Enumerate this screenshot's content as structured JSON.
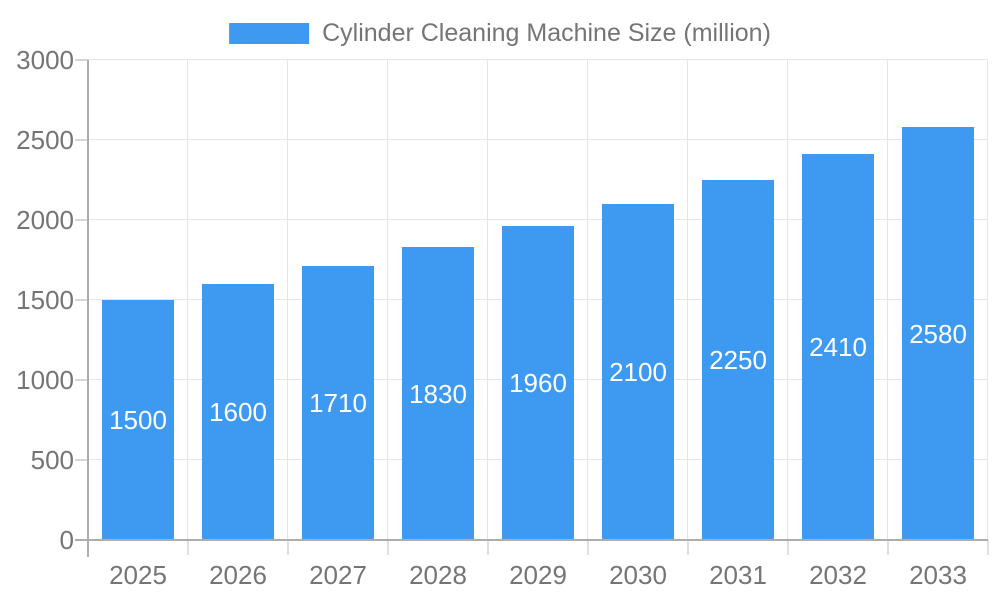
{
  "legend": {
    "series_label": "Cylinder Cleaning Machine Size (million)",
    "swatch_color": "#3d9af0"
  },
  "chart_data": {
    "type": "bar",
    "title": "",
    "xlabel": "",
    "ylabel": "",
    "categories": [
      "2025",
      "2026",
      "2027",
      "2028",
      "2029",
      "2030",
      "2031",
      "2032",
      "2033"
    ],
    "values": [
      1500,
      1600,
      1710,
      1830,
      1960,
      2100,
      2250,
      2410,
      2580
    ],
    "series_name": "Cylinder Cleaning Machine Size (million)",
    "ylim": [
      0,
      3000
    ],
    "yticks": [
      0,
      500,
      1000,
      1500,
      2000,
      2500,
      3000
    ],
    "grid": true,
    "legend_position": "top-center",
    "bar_labels_visible": true,
    "bar_color": "#3d9af0",
    "bar_label_color": "#ffffff",
    "axis_text_color": "#757575",
    "axis_line_color": "#adadad",
    "grid_color": "#e6e6e6"
  }
}
